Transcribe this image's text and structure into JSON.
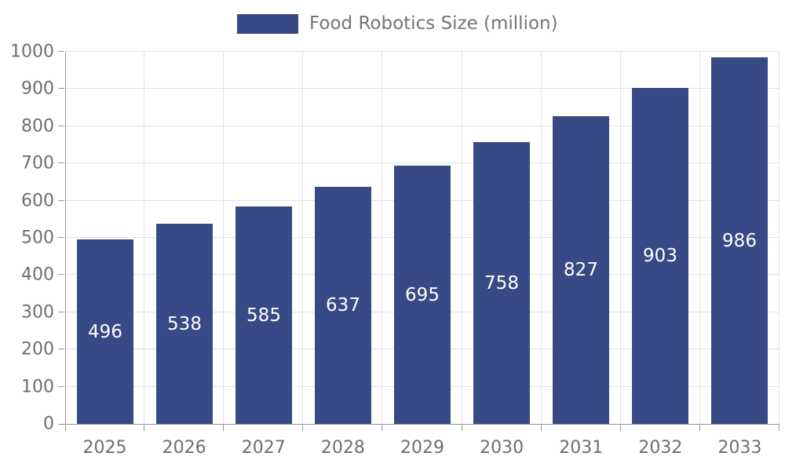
{
  "legend": {
    "label": "Food Robotics Size (million)"
  },
  "chart_data": {
    "type": "bar",
    "title": "Food Robotics Size (million)",
    "series_name": "Food Robotics Size (million)",
    "categories": [
      "2025",
      "2026",
      "2027",
      "2028",
      "2029",
      "2030",
      "2031",
      "2032",
      "2033"
    ],
    "values": [
      496,
      538,
      585,
      637,
      695,
      758,
      827,
      903,
      986
    ],
    "value_labels": [
      "496",
      "538",
      "585",
      "637",
      "695",
      "758",
      "827",
      "903",
      "986"
    ],
    "xlabel": "",
    "ylabel": "",
    "ylim": [
      0,
      1000
    ],
    "yticks": [
      0,
      100,
      200,
      300,
      400,
      500,
      600,
      700,
      800,
      900,
      1000
    ],
    "ytick_labels": [
      "0",
      "100",
      "200",
      "300",
      "400",
      "500",
      "600",
      "700",
      "800",
      "900",
      "1000"
    ],
    "grid": true,
    "legend_position": "top-center",
    "value_label_position": "inside-middle"
  },
  "colors": {
    "bar": "#384A85",
    "grid": "#e2e2e2",
    "axis": "#999999",
    "tick_label": "#6e6e6e",
    "legend_text": "#757575",
    "value_label": "#ffffff",
    "background": "#ffffff"
  }
}
